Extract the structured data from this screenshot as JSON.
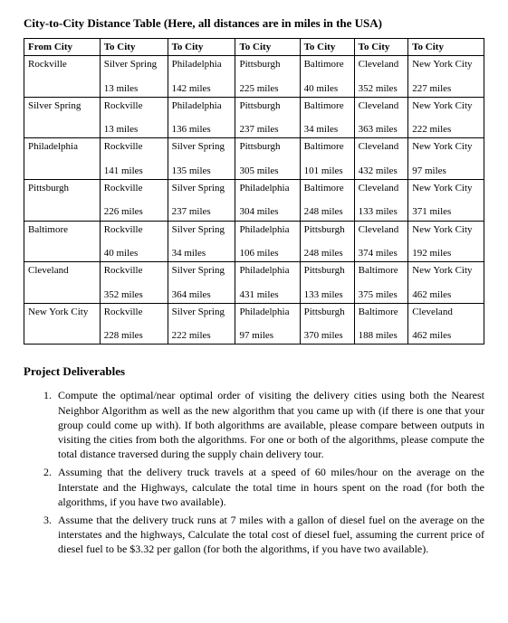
{
  "title": "City-to-City Distance Table (Here, all distances are in miles in the USA)",
  "headers": [
    "From City",
    "To City",
    "To City",
    "To City",
    "To City",
    "To City",
    "To City"
  ],
  "rows": [
    {
      "from": "Rockville",
      "cells": [
        {
          "city": "Silver Spring",
          "dist": "13 miles"
        },
        {
          "city": "Philadelphia",
          "dist": "142 miles"
        },
        {
          "city": "Pittsburgh",
          "dist": "225 miles"
        },
        {
          "city": "Baltimore",
          "dist": "40 miles"
        },
        {
          "city": "Cleveland",
          "dist": "352 miles"
        },
        {
          "city": "New York City",
          "dist": "227 miles"
        }
      ]
    },
    {
      "from": "Silver Spring",
      "cells": [
        {
          "city": "Rockville",
          "dist": "13 miles"
        },
        {
          "city": "Philadelphia",
          "dist": "136 miles"
        },
        {
          "city": "Pittsburgh",
          "dist": "237 miles"
        },
        {
          "city": "Baltimore",
          "dist": "34 miles"
        },
        {
          "city": "Cleveland",
          "dist": "363 miles"
        },
        {
          "city": "New York City",
          "dist": "222 miles"
        }
      ]
    },
    {
      "from": "Philadelphia",
      "cells": [
        {
          "city": "Rockville",
          "dist": "141 miles"
        },
        {
          "city": "Silver Spring",
          "dist": "135 miles"
        },
        {
          "city": "Pittsburgh",
          "dist": "305 miles"
        },
        {
          "city": "Baltimore",
          "dist": "101 miles"
        },
        {
          "city": "Cleveland",
          "dist": "432 miles"
        },
        {
          "city": "New York City",
          "dist": "97 miles"
        }
      ]
    },
    {
      "from": "Pittsburgh",
      "cells": [
        {
          "city": "Rockville",
          "dist": "226 miles"
        },
        {
          "city": "Silver Spring",
          "dist": "237 miles"
        },
        {
          "city": "Philadelphia",
          "dist": "304 miles"
        },
        {
          "city": "Baltimore",
          "dist": "248 miles"
        },
        {
          "city": "Cleveland",
          "dist": "133 miles"
        },
        {
          "city": "New York City",
          "dist": "371 miles"
        }
      ]
    },
    {
      "from": "Baltimore",
      "cells": [
        {
          "city": "Rockville",
          "dist": "40 miles"
        },
        {
          "city": "Silver Spring",
          "dist": "34 miles"
        },
        {
          "city": "Philadelphia",
          "dist": "106 miles"
        },
        {
          "city": "Pittsburgh",
          "dist": "248 miles"
        },
        {
          "city": "Cleveland",
          "dist": "374 miles"
        },
        {
          "city": "New York City",
          "dist": "192 miles"
        }
      ]
    },
    {
      "from": "Cleveland",
      "cells": [
        {
          "city": "Rockville",
          "dist": "352 miles"
        },
        {
          "city": "Silver Spring",
          "dist": "364 miles"
        },
        {
          "city": "Philadelphia",
          "dist": "431 miles"
        },
        {
          "city": "Pittsburgh",
          "dist": "133 miles"
        },
        {
          "city": "Baltimore",
          "dist": "375 miles"
        },
        {
          "city": "New York City",
          "dist": "462 miles"
        }
      ]
    },
    {
      "from": "New York City",
      "cells": [
        {
          "city": "Rockville",
          "dist": "228 miles"
        },
        {
          "city": "Silver Spring",
          "dist": "222 miles"
        },
        {
          "city": "Philadelphia",
          "dist": "97 miles"
        },
        {
          "city": "Pittsburgh",
          "dist": "370 miles"
        },
        {
          "city": "Baltimore",
          "dist": "188 miles"
        },
        {
          "city": "Cleveland",
          "dist": "462 miles"
        }
      ]
    }
  ],
  "deliverables_heading": "Project Deliverables",
  "deliverables": [
    "Compute the optimal/near optimal order of visiting the delivery cities using both the Nearest Neighbor Algorithm as well as the new algorithm that you came up with (if there is one that your group could come up with). If both algorithms are available, please compare between outputs in visiting the cities from both the algorithms. For one or both of the algorithms, please compute the total distance traversed during the supply chain delivery tour.",
    "Assuming that the delivery truck travels at a speed of 60 miles/hour on the average on the Interstate and the Highways, calculate the total time in hours spent on the road (for both the algorithms, if you have two available).",
    "Assume that the delivery truck runs at 7 miles with a gallon of diesel fuel on the average on the interstates and the highways, Calculate the total cost of diesel fuel, assuming the current price of diesel fuel to be $3.32 per gallon (for both the algorithms, if you have two available)."
  ]
}
